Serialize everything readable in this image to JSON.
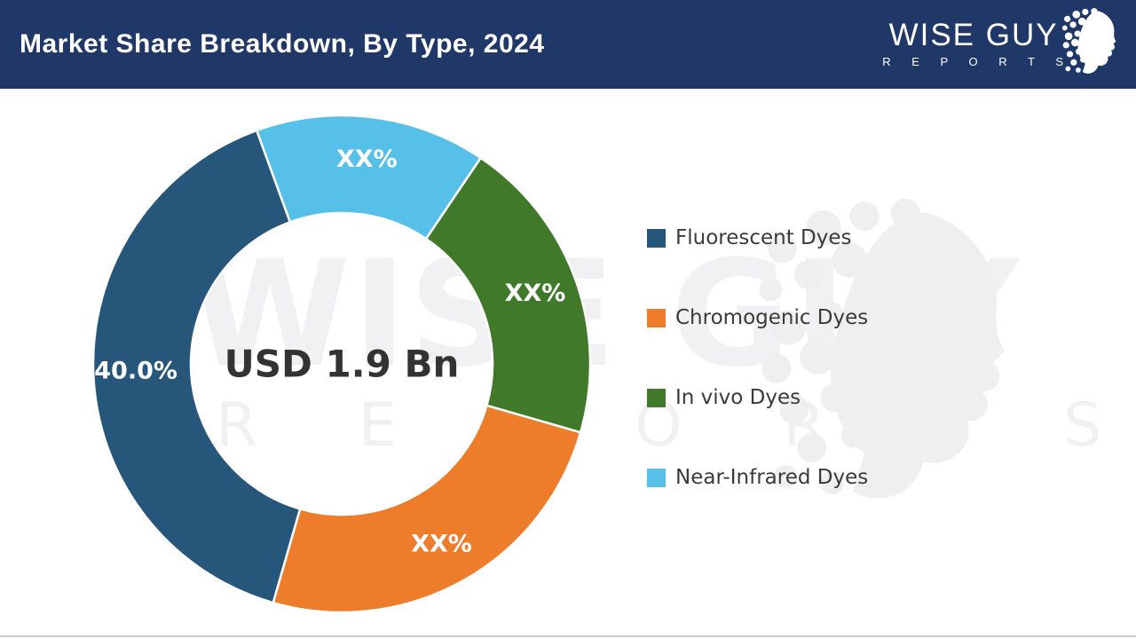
{
  "header": {
    "title": "Market Share Breakdown, By Type, 2024",
    "bg_color": "#203867",
    "logo": {
      "line1": "WISE GUY",
      "line2": "R E P O R T S"
    }
  },
  "watermark": {
    "line1": "WISE GUY",
    "line2": "R E P O R T S"
  },
  "chart_data": {
    "type": "pie",
    "donut": true,
    "title": "Market Share Breakdown, By Type, 2024",
    "center_total": "USD 1.9 Bn",
    "start_angle_deg": 110,
    "direction": "counterclockwise",
    "legend_position": "right",
    "segments": [
      {
        "label": "Fluorescent Dyes",
        "value_pct": 40.0,
        "display_label": "40.0%",
        "color": "#27567B"
      },
      {
        "label": "Chromogenic Dyes",
        "value_pct": 25.0,
        "display_label": "XX%",
        "color": "#ED7D2B"
      },
      {
        "label": "In vivo Dyes",
        "value_pct": 20.0,
        "display_label": "XX%",
        "color": "#41792B"
      },
      {
        "label": "Near-Infrared Dyes",
        "value_pct": 15.0,
        "display_label": "XX%",
        "color": "#56C0E8"
      }
    ]
  },
  "colors": {
    "header_bg": "#203867",
    "watermark": "#f1f1f3",
    "center_text": "#333333",
    "legend_text": "#3a3a3a"
  }
}
